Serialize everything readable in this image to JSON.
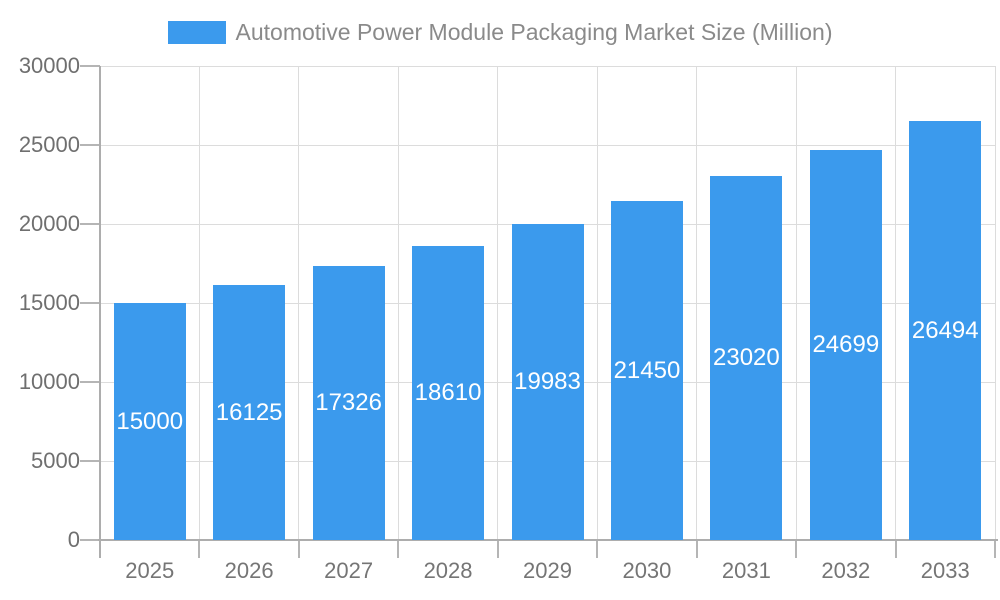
{
  "legend": {
    "label": "Automotive Power Module Packaging Market Size (Million)"
  },
  "chart_data": {
    "type": "bar",
    "title": "Automotive Power Module Packaging Market Size (Million)",
    "categories": [
      "2025",
      "2026",
      "2027",
      "2028",
      "2029",
      "2030",
      "2031",
      "2032",
      "2033"
    ],
    "values": [
      15000,
      16125,
      17326,
      18610,
      19983,
      21450,
      23020,
      24699,
      26494
    ],
    "xlabel": "",
    "ylabel": "",
    "ylim": [
      0,
      30000
    ],
    "yticks": [
      0,
      5000,
      10000,
      15000,
      20000,
      25000,
      30000
    ],
    "grid": true,
    "legend_position": "top-center",
    "bar_label_position": "inside-center",
    "colors": {
      "bar": "#3b9aed",
      "bar_label": "#ffffff",
      "y_axis_label": "#6f6f6f",
      "x_axis_label": "#757575",
      "legend_text": "#8a8a8a",
      "gridline": "#dcdcdc",
      "axis_line": "#adadad",
      "tick": "#b5b5b5",
      "background": "#ffffff"
    }
  }
}
